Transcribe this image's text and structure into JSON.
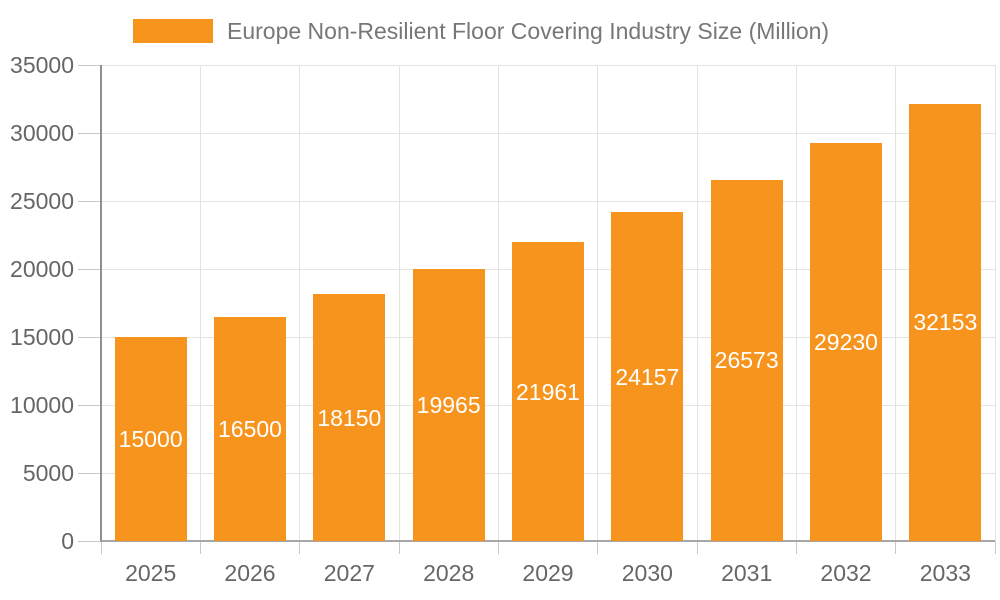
{
  "chart_data": {
    "type": "bar",
    "title": "Europe Non-Resilient Floor Covering Industry Size (Million)",
    "legend": {
      "label": "Europe Non-Resilient Floor Covering Industry Size (Million)",
      "position": "top"
    },
    "categories": [
      "2025",
      "2026",
      "2027",
      "2028",
      "2029",
      "2030",
      "2031",
      "2032",
      "2033"
    ],
    "values": [
      15000,
      16500,
      18150,
      19965,
      21961,
      24157,
      26573,
      29230,
      32153
    ],
    "xlabel": "",
    "ylabel": "",
    "ylim": [
      0,
      35000
    ],
    "y_ticks": [
      0,
      5000,
      10000,
      15000,
      20000,
      25000,
      30000,
      35000
    ],
    "grid": true,
    "legend_position": "top",
    "bar_color": "#F7941E",
    "bar_label_color": "#FFFFFF",
    "axis_text_color": "#666666",
    "legend_text_color": "#777777",
    "gridline_color": "#E3E3E3",
    "y_axis_line_color": "#8F8F8F",
    "x_axis_line_color": "#A6A6A6",
    "tick_color": "#C8C8C8"
  }
}
